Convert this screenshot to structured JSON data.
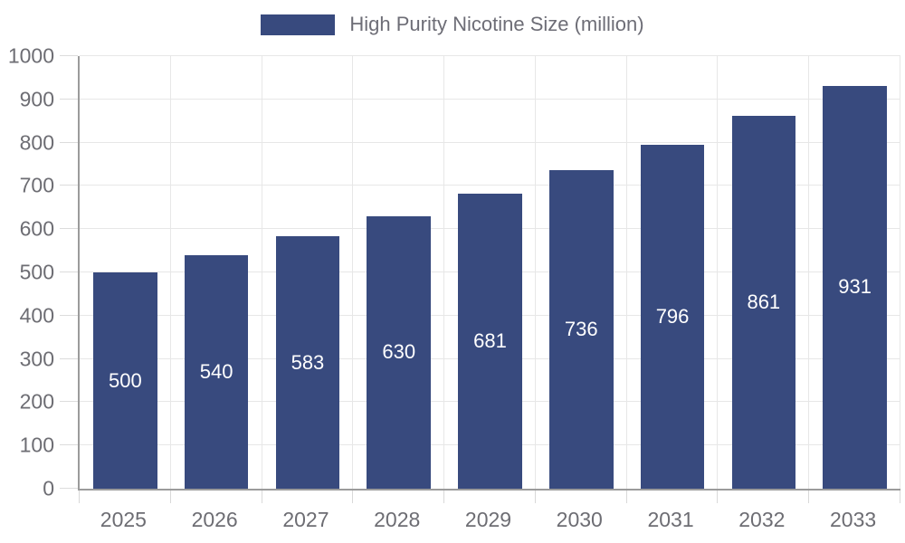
{
  "legend": {
    "label": "High Purity Nicotine Size (million)",
    "swatch_color": "#384A7E"
  },
  "chart_data": {
    "type": "bar",
    "title": "",
    "xlabel": "",
    "ylabel": "",
    "categories": [
      "2025",
      "2026",
      "2027",
      "2028",
      "2029",
      "2030",
      "2031",
      "2032",
      "2033"
    ],
    "series": [
      {
        "name": "High Purity Nicotine Size (million)",
        "values": [
          500,
          540,
          583,
          630,
          681,
          736,
          796,
          861,
          931
        ]
      }
    ],
    "value_labels": [
      "500",
      "540",
      "583",
      "630",
      "681",
      "736",
      "796",
      "861",
      "931"
    ],
    "ylim": [
      0,
      1000
    ],
    "ytick_step": 100,
    "ytick_labels": [
      "0",
      "100",
      "200",
      "300",
      "400",
      "500",
      "600",
      "700",
      "800",
      "900",
      "1000"
    ],
    "grid": true,
    "legend_position": "top-center",
    "colors": {
      "bar": "#384A7E",
      "value_label": "#ffffff",
      "grid_line": "#e7e7e7",
      "axis_line": "#9b9b9b",
      "tick_text": "#6d6d73",
      "legend_text": "#6d6d76",
      "background": "#ffffff"
    }
  }
}
